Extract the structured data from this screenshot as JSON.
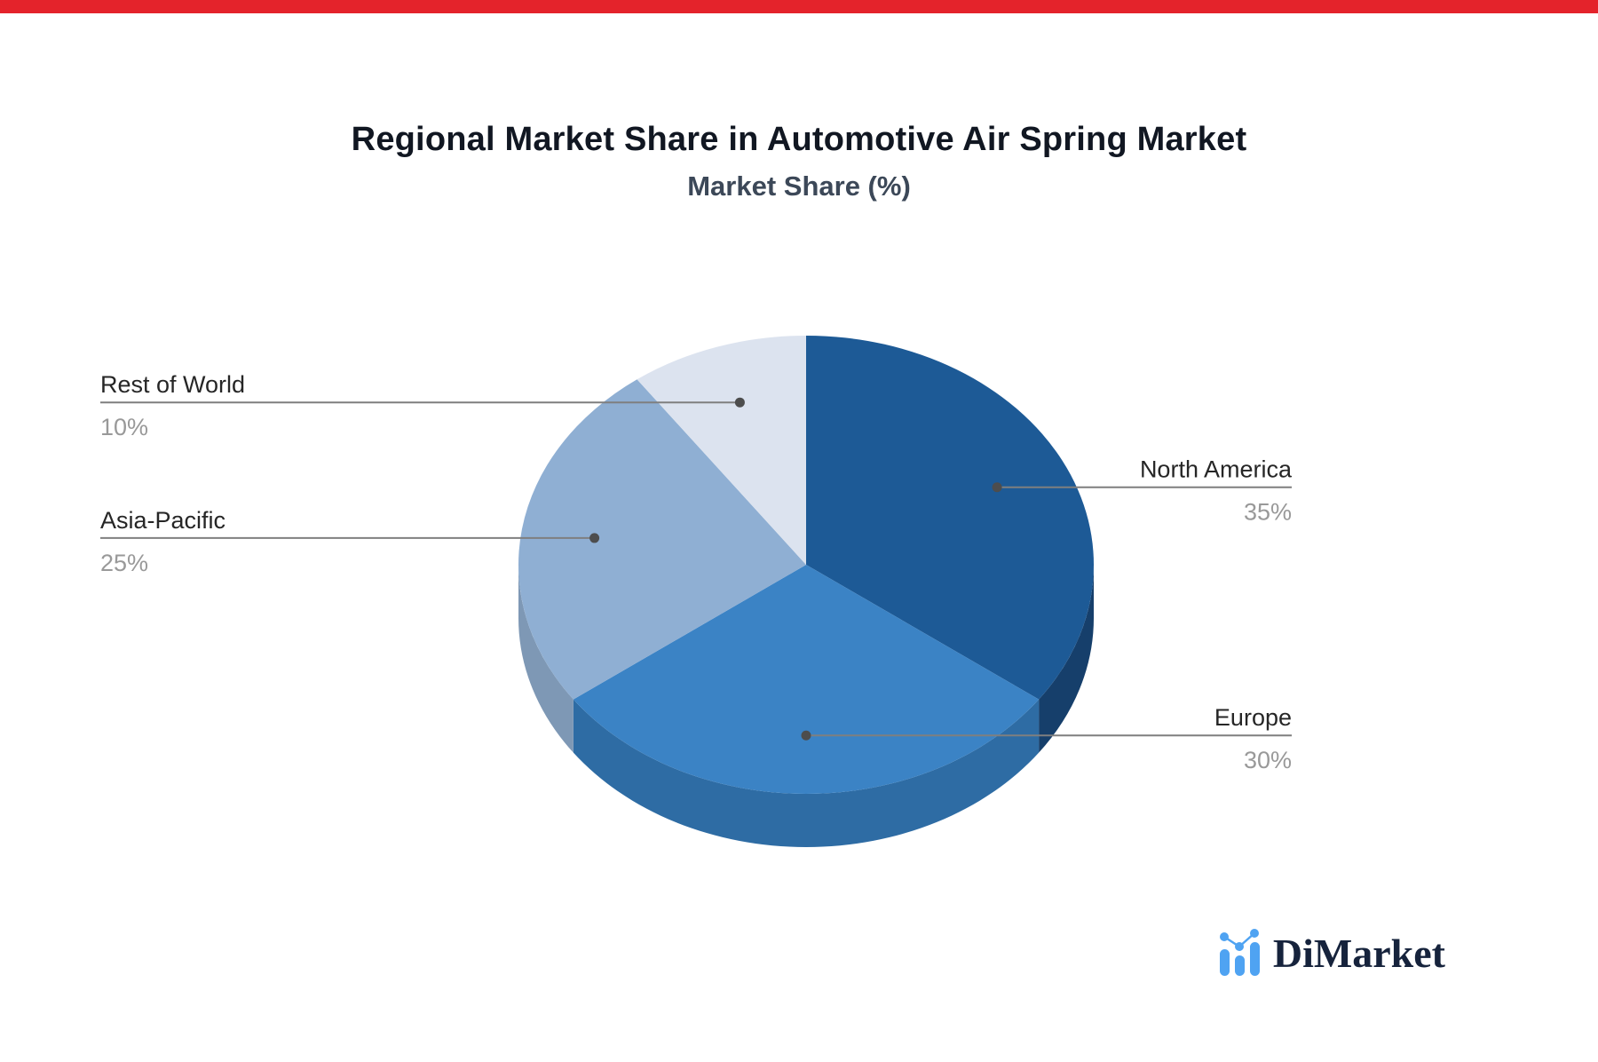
{
  "page": {
    "background": "#ffffff",
    "top_bar_color": "#E4232B"
  },
  "header": {
    "title": "Regional Market Share in Automotive Air Spring Market",
    "subtitle": "Market Share (%)"
  },
  "chart_data": {
    "type": "pie",
    "style": "3d",
    "title": "Regional Market Share in Automotive Air Spring Market",
    "subtitle": "Market Share (%)",
    "unit": "%",
    "start_angle": "12 o'clock",
    "direction": "clockwise",
    "series": [
      {
        "name": "North America",
        "value": 35,
        "label": "35%",
        "color": "#1D5A96",
        "side_color": "#163F6B"
      },
      {
        "name": "Europe",
        "value": 30,
        "label": "30%",
        "color": "#3B83C5",
        "side_color": "#2E6CA4"
      },
      {
        "name": "Asia-Pacific",
        "value": 25,
        "label": "25%",
        "color": "#8FAFD3",
        "side_color": "#7E98B5"
      },
      {
        "name": "Rest of World",
        "value": 10,
        "label": "10%",
        "color": "#DCE3EF",
        "side_color": "#B9C4D6"
      }
    ],
    "label_name_color": "#262626",
    "label_value_color": "#999999",
    "leader_line_color": "#7F7F7F",
    "leader_dot_color": "#4D4D4D"
  },
  "logo": {
    "text": "DiMarket",
    "text_color": "#16233C",
    "icon_color": "#4FA3F2",
    "icon": "bar-line-chart-icon"
  }
}
